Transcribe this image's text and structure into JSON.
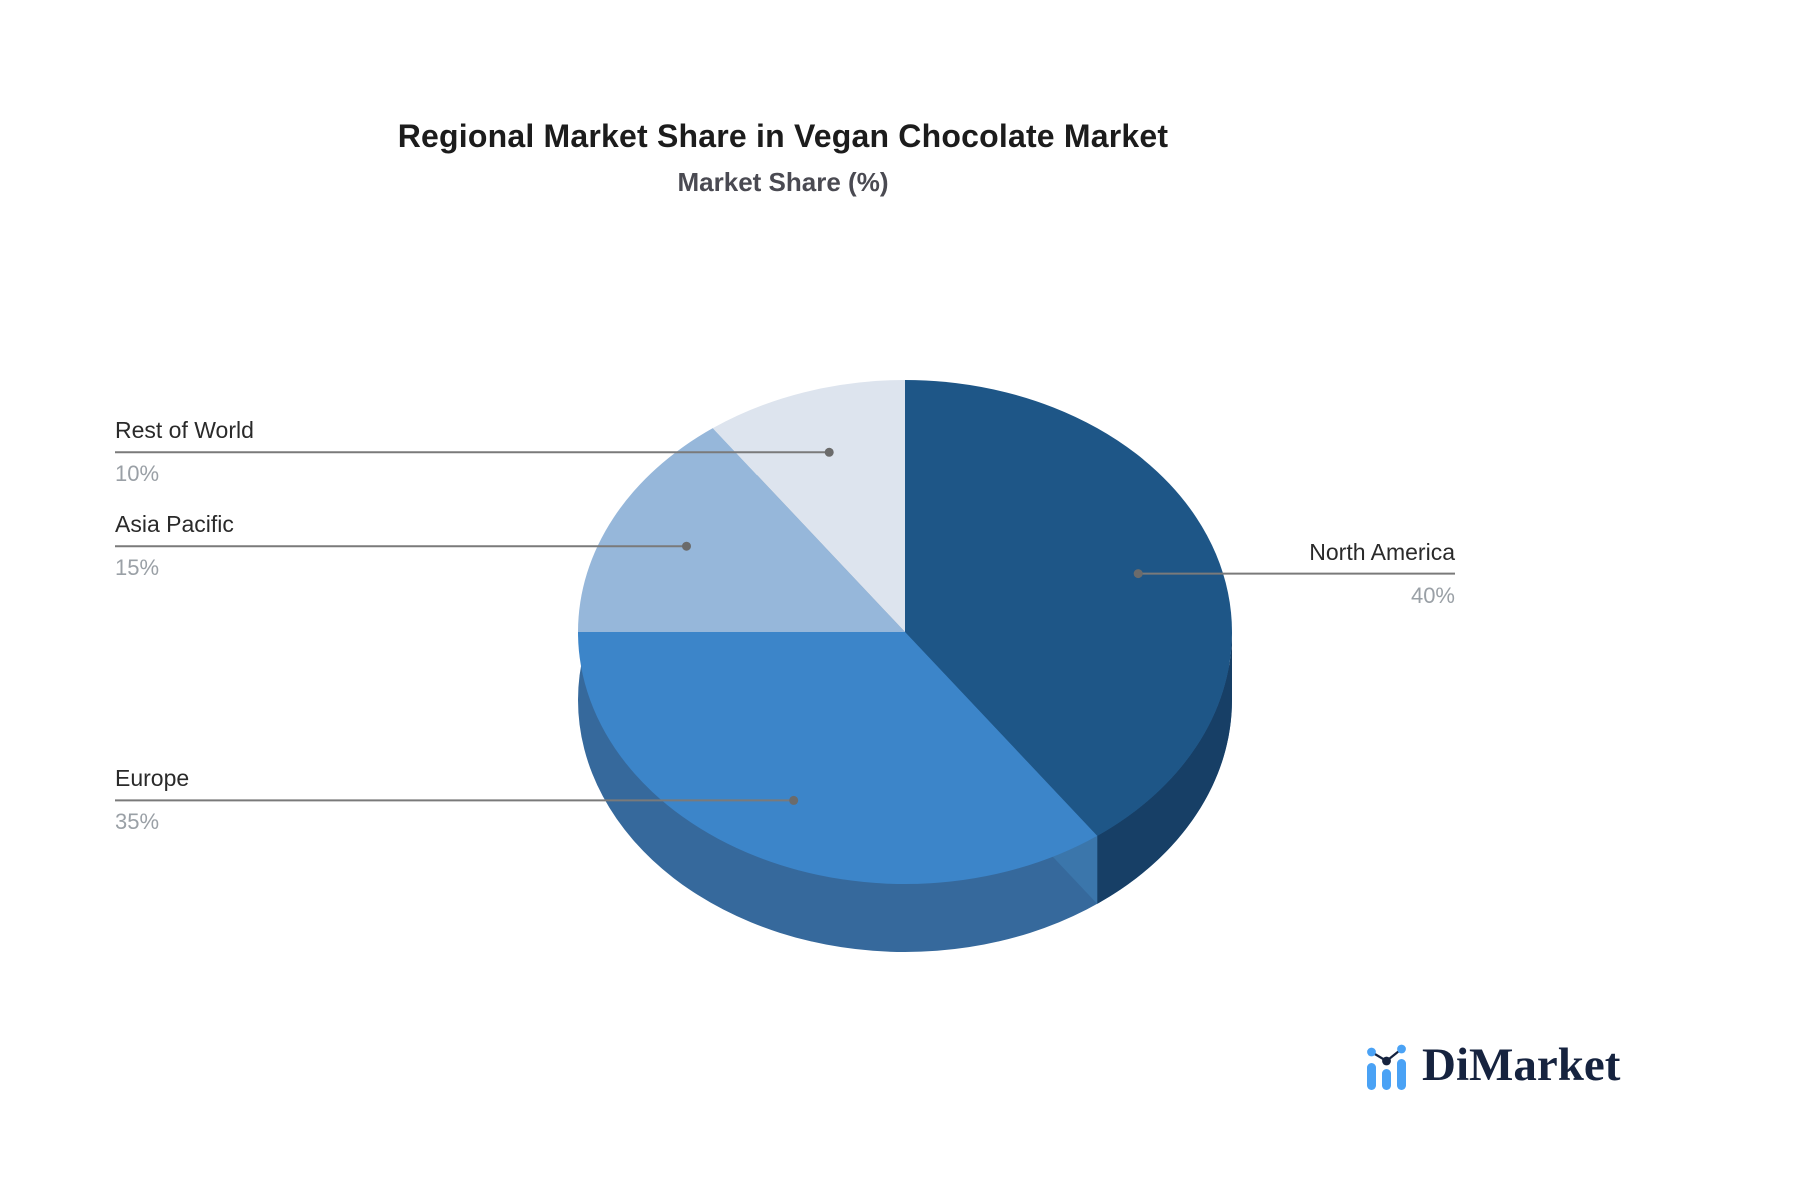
{
  "header": {
    "title": "Regional Market Share in Vegan Chocolate Market",
    "subtitle": "Market Share (%)"
  },
  "chart_data": {
    "type": "pie",
    "title": "Regional Market Share in Vegan Chocolate Market",
    "subtitle": "Market Share (%)",
    "unit": "%",
    "labels": [
      "North America",
      "Europe",
      "Asia Pacific",
      "Rest of World"
    ],
    "values": [
      40,
      35,
      15,
      10
    ],
    "display_values": [
      "40%",
      "35%",
      "15%",
      "10%"
    ],
    "colors": [
      "#1e5687",
      "#3c85c9",
      "#96b7da",
      "#dde4ee"
    ],
    "style": "3d-pie",
    "start_angle_deg": 0,
    "direction": "clockwise",
    "legend_position": "none",
    "leader_line_color": "#7a7a7a",
    "leader_dot_color": "#6b6b6b",
    "depth_colors": {
      "europe_rim": "#36699c",
      "north_america_rim": "#173f66",
      "radial_wall": "#3b76ab"
    },
    "label_color": "#2a2a2a",
    "value_color": "#9aa0a6"
  },
  "branding": {
    "logo_text": "DiMarket",
    "icon": "bar-line-chart-icon",
    "logo_text_color": "#16233f",
    "logo_accent_color": "#4aa2f5"
  }
}
